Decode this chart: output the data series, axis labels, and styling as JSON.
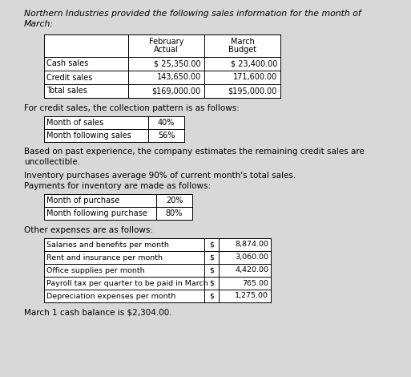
{
  "bg_color": "#d8d8d8",
  "title_text": "Northern Industries provided the following sales information for the month of\nMarch:",
  "table1_headers": [
    "",
    "February\nActual",
    "March\nBudget"
  ],
  "table1_rows": [
    [
      "Cash sales",
      "$ 25,350.00",
      "$ 23,400.00"
    ],
    [
      "Credit sales",
      "143,650.00",
      "171,600.00"
    ],
    [
      "Total sales",
      "$169,000.00",
      "$195,000.00"
    ]
  ],
  "text1": "For credit sales, the collection pattern is as follows:",
  "table2_rows": [
    [
      "Month of sales",
      "40%"
    ],
    [
      "Month following sales",
      "56%"
    ]
  ],
  "text2": "Based on past experience, the company estimates the remaining credit sales are\nuncollectible.",
  "text3": "Inventory purchases average 90% of current month's total sales.\nPayments for inventory are made as follows:",
  "table3_rows": [
    [
      "Month of purchase",
      "20%"
    ],
    [
      "Month following purchase",
      "80%"
    ]
  ],
  "text4": "Other expenses are as follows:",
  "table4_col1": [
    "Salaries and benefits per month",
    "Rent and insurance per month",
    "Office supplies per month",
    "Payroll tax per quarter to be paid in March",
    "Depreciation expenses per month"
  ],
  "table4_col2": [
    "$",
    "$",
    "$",
    "$",
    "$"
  ],
  "table4_col3": [
    "8,874.00",
    "3,060.00",
    "4,420.00",
    "765.00",
    "1,275.00"
  ],
  "text5": "March 1 cash balance is $2,304.00."
}
